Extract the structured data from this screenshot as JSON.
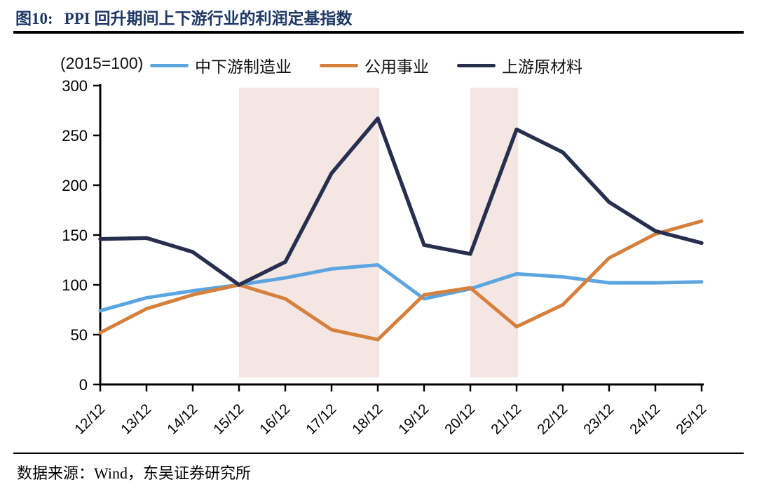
{
  "figure": {
    "label": "图10:",
    "title": "PPI 回升期间上下游行业的利润定基指数"
  },
  "unit_note": "(2015=100)",
  "legend": [
    {
      "label": "中下游制造业",
      "color": "#5BA5E0"
    },
    {
      "label": "公用事业",
      "color": "#D5803C"
    },
    {
      "label": "上游原材料",
      "color": "#272E4E"
    }
  ],
  "chart_data": {
    "type": "line",
    "title": "PPI 回升期间上下游行业的利润定基指数",
    "unit_note": "(2015=100)",
    "categories": [
      "12/12",
      "13/12",
      "14/12",
      "15/12",
      "16/12",
      "17/12",
      "18/12",
      "19/12",
      "20/12",
      "21/12",
      "22/12",
      "23/12",
      "24/12",
      "25/12"
    ],
    "series": [
      {
        "name": "中下游制造业",
        "color": "#5BA5E0",
        "values": [
          74,
          87,
          94,
          100,
          107,
          116,
          120,
          86,
          96,
          111,
          108,
          102,
          102,
          103
        ]
      },
      {
        "name": "公用事业",
        "color": "#D5803C",
        "values": [
          52,
          76,
          90,
          100,
          86,
          55,
          45,
          90,
          97,
          58,
          80,
          127,
          151,
          164
        ]
      },
      {
        "name": "上游原材料",
        "color": "#272E4E",
        "values": [
          146,
          147,
          133,
          100,
          123,
          212,
          267,
          140,
          131,
          256,
          233,
          183,
          154,
          142
        ]
      }
    ],
    "ylim": [
      0,
      300
    ],
    "yticks": [
      0,
      50,
      100,
      150,
      200,
      250,
      300
    ],
    "grid": false,
    "legend_position": "top",
    "shaded_bands": [
      {
        "from": "15/12",
        "to": "18/12"
      },
      {
        "from": "20/12",
        "to": "21/12"
      }
    ],
    "band_color": "#F3E6E3",
    "axis_color": "#000000"
  },
  "footer": {
    "source": "数据来源：Wind，东吴证券研究所"
  }
}
